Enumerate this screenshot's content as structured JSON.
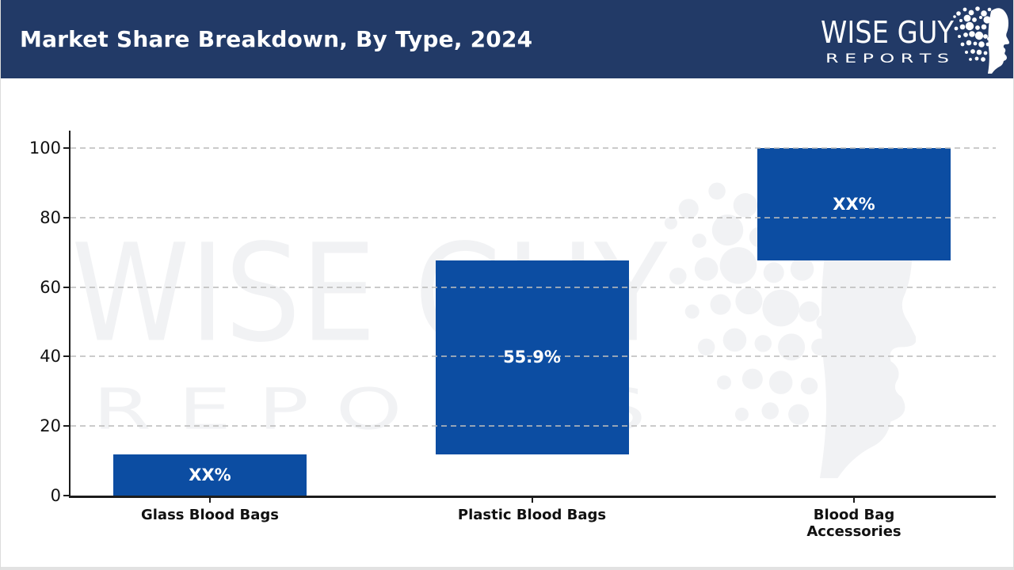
{
  "header": {
    "title": "Market Share Breakdown, By Type, 2024",
    "bg_color": "#223a67",
    "brand": {
      "name_top": "WISE GUY",
      "name_bottom": "R E P O R T S",
      "logo_icon": "dotted-face-profile"
    }
  },
  "chart_data": {
    "type": "bar",
    "subtype": "waterfall",
    "title": "Market Share Breakdown, By Type, 2024",
    "categories": [
      "Glass Blood Bags",
      "Plastic Blood Bags",
      "Blood Bag\nAccessories"
    ],
    "values": {
      "start": [
        0,
        11.8,
        67.7
      ],
      "end": [
        11.8,
        67.7,
        100
      ]
    },
    "bar_labels": [
      "XX%",
      "55.9%",
      "XX%"
    ],
    "y_ticks": [
      0,
      20,
      40,
      60,
      80,
      100
    ],
    "ylim": [
      0,
      105
    ],
    "grid": {
      "axis": "y",
      "style": "dashed",
      "above_bars": true
    },
    "legend": "none",
    "bar_color": "#0c4da2",
    "bar_label_color": "#ffffff",
    "axis_color": "#1c1c1c",
    "tick_label_color": "#111111",
    "gridline_color": "#d4d4d4"
  },
  "watermark": {
    "text_top": "WISE GUY",
    "text_bottom": "R E P O R T S",
    "color": "#f1f2f4"
  }
}
